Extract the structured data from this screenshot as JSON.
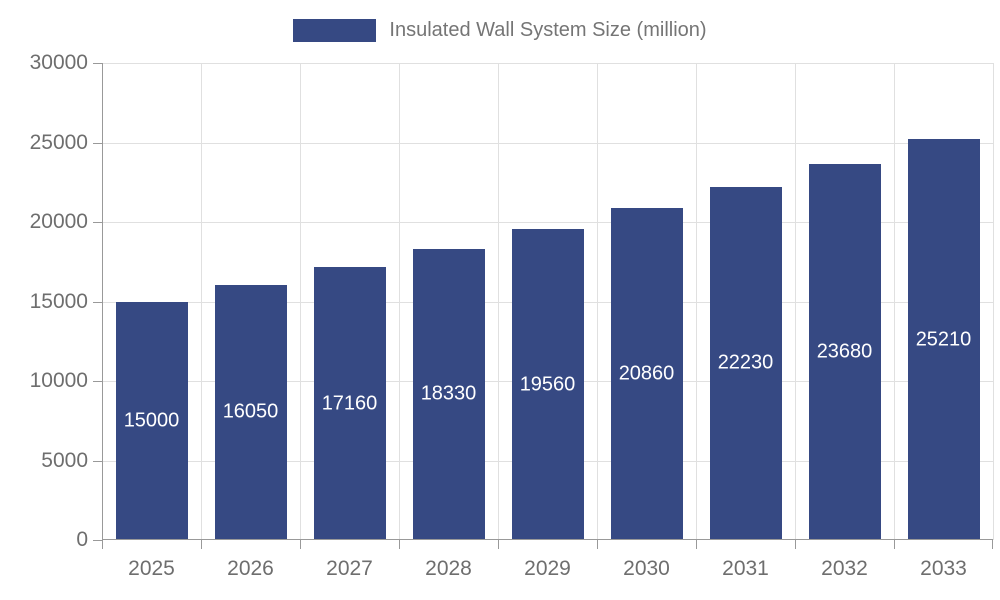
{
  "legend": {
    "items": [
      {
        "label": "Insulated Wall System Size (million)",
        "color": "#364983"
      }
    ]
  },
  "chart_data": {
    "type": "bar",
    "title": "Insulated Wall System Size (million)",
    "series_name": "Insulated Wall System Size (million)",
    "categories": [
      "2025",
      "2026",
      "2027",
      "2028",
      "2029",
      "2030",
      "2031",
      "2032",
      "2033"
    ],
    "values": [
      15000,
      16050,
      17160,
      18330,
      19560,
      20860,
      22230,
      23680,
      25210
    ],
    "xlabel": "",
    "ylabel": "",
    "ylim": [
      0,
      30000
    ],
    "yticks": [
      0,
      5000,
      10000,
      15000,
      20000,
      25000,
      30000
    ],
    "grid": true,
    "legend_position": "top-center",
    "bar_color": "#364983",
    "bar_label_color": "#ffffff",
    "axis_line_color": "#999999",
    "grid_line_color": "#e0e0e0",
    "tick_label_color": "#6e6e6e",
    "legend_text_color": "#757575",
    "background_color": "#ffffff"
  }
}
